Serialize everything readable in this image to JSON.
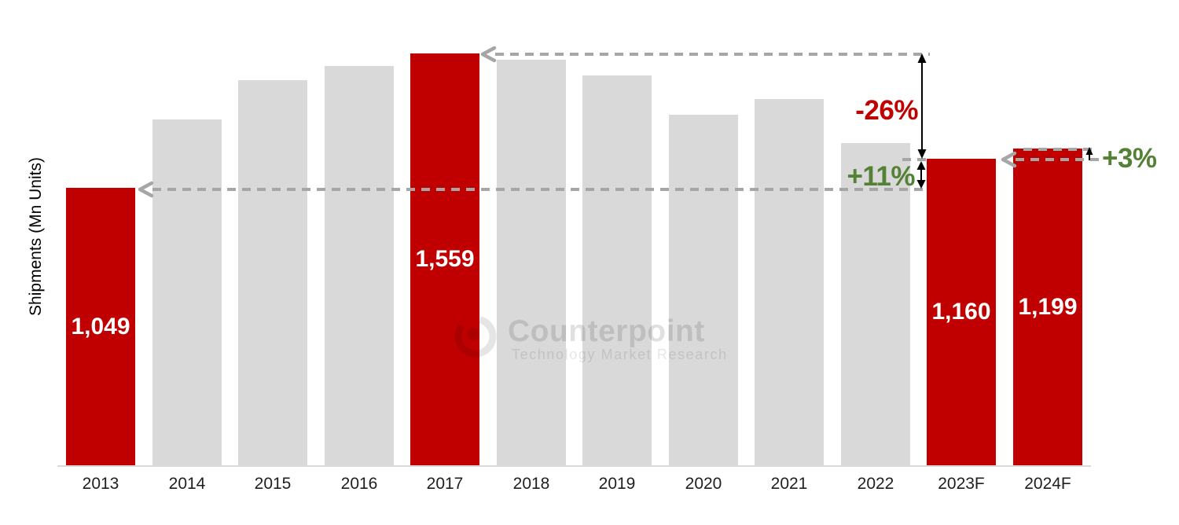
{
  "watermark": {
    "title": "Counterpoint",
    "subtitle": "Technology Market Research"
  },
  "colors": {
    "bar_highlight": "#c00000",
    "bar_default": "#d9d9d9",
    "annotation_red": "#c00000",
    "annotation_green": "#538135",
    "dashed_line": "#a6a6a6",
    "axis_line": "#d9d9d9",
    "bar_value_text": "#ffffff"
  },
  "chart_data": {
    "type": "bar",
    "title": "",
    "xlabel": "",
    "ylabel": "Shipments (Mn Units)",
    "categories": [
      "2013",
      "2014",
      "2015",
      "2016",
      "2017",
      "2018",
      "2019",
      "2020",
      "2021",
      "2022",
      "2023F",
      "2024F"
    ],
    "values": [
      1049,
      1310,
      1458,
      1510,
      1559,
      1535,
      1475,
      1328,
      1386,
      1220,
      1160,
      1199
    ],
    "value_labels": [
      "1,049",
      "",
      "",
      "",
      "1,559",
      "",
      "",
      "",
      "",
      "",
      "1,160",
      "1,199"
    ],
    "highlighted_indices": [
      0,
      4,
      10,
      11
    ],
    "ylim": [
      0,
      1760
    ],
    "grid": false,
    "legend": "none",
    "annotations": [
      {
        "text": "-26%",
        "color": "#c00000"
      },
      {
        "text": "+11%",
        "color": "#538135"
      },
      {
        "text": "+3%",
        "color": "#538135"
      }
    ]
  }
}
